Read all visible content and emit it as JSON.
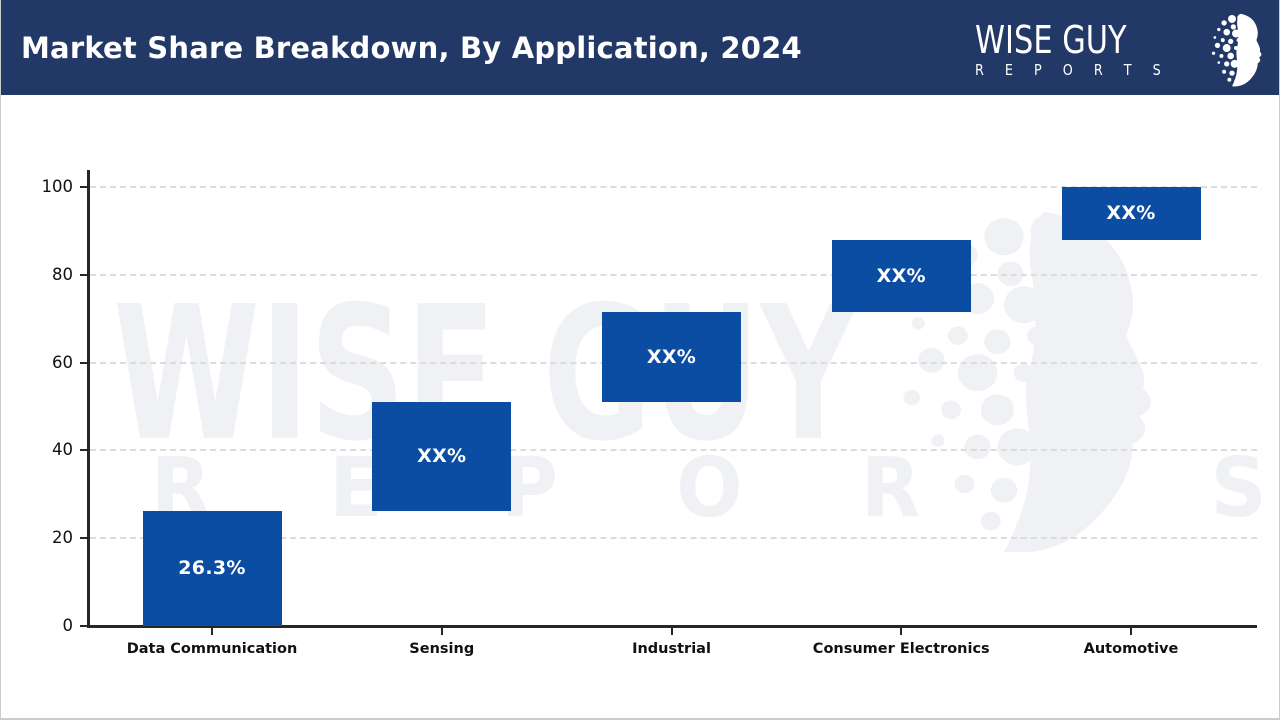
{
  "header": {
    "title": "Market Share Breakdown, By Application, 2024",
    "logo": {
      "wordmark": "WISE GUY",
      "subtitle": "R E P O R T S"
    }
  },
  "watermark": {
    "wordmark": "WISE GUY",
    "subtitle": "R E P O R T S"
  },
  "colors": {
    "header_bg": "#223968",
    "bar": "#0b4da2",
    "bar_label": "#ffffff",
    "axis": "#262626",
    "grid": "#dcdcdc",
    "watermark": "#f0f1f4"
  },
  "chart_data": {
    "type": "bar",
    "subtype": "waterfall",
    "title": "Market Share Breakdown, By Application, 2024",
    "categories": [
      "Data Communication",
      "Sensing",
      "Industrial",
      "Consumer Electronics",
      "Automotive"
    ],
    "bars": [
      {
        "category": "Data Communication",
        "start": 0,
        "end": 26.3,
        "label": "26.3%"
      },
      {
        "category": "Sensing",
        "start": 26.3,
        "end": 51,
        "label": "XX%"
      },
      {
        "category": "Industrial",
        "start": 51,
        "end": 71.5,
        "label": "XX%"
      },
      {
        "category": "Consumer Electronics",
        "start": 71.5,
        "end": 88,
        "label": "XX%"
      },
      {
        "category": "Automotive",
        "start": 88,
        "end": 100,
        "label": "XX%"
      }
    ],
    "xlabel": "",
    "ylabel": "",
    "ylim": [
      0,
      100
    ],
    "yticks": [
      0,
      20,
      40,
      60,
      80,
      100
    ],
    "grid": "horizontal-dashed",
    "legend": null
  }
}
